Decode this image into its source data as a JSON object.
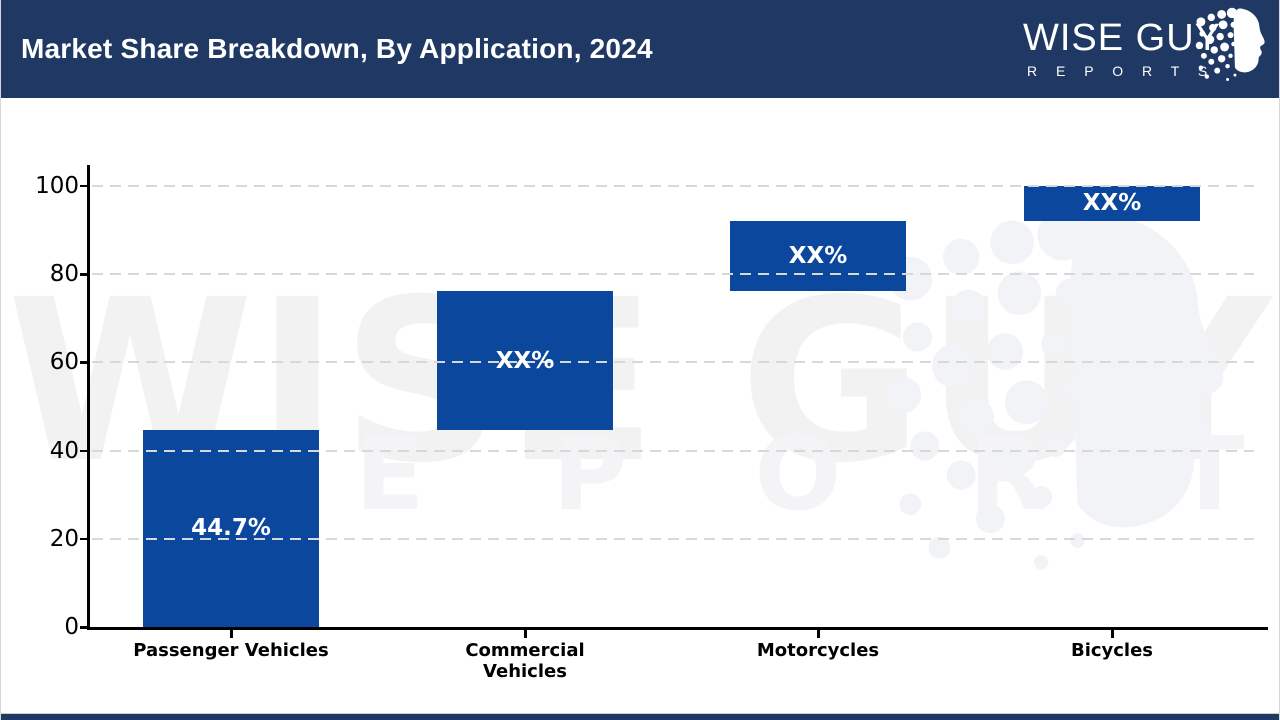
{
  "header": {
    "title": "Market Share Breakdown, By Application, 2024",
    "bg_color": "#1f3864",
    "logo": {
      "line1": "WISE GUY",
      "line2": "R E P O R T S"
    }
  },
  "watermark": {
    "line1": "WISE GUY",
    "line2": "R E P O R T S"
  },
  "footer": {
    "bar_color": "#1f3864"
  },
  "chart_data": {
    "type": "bar",
    "subtype": "waterfall-stacked-percentage",
    "title": "Market Share Breakdown, By Application, 2024",
    "categories": [
      "Passenger Vehicles",
      "Commercial Vehicles",
      "Motorcycles",
      "Bicycles"
    ],
    "bars": [
      {
        "category": "Passenger Vehicles",
        "category_label": "Passenger Vehicles",
        "start": 0,
        "end": 44.7,
        "label": "44.7%"
      },
      {
        "category": "Commercial Vehicles",
        "category_label": "Commercial\nVehicles",
        "start": 44.7,
        "end": 76.1,
        "label": "XX%"
      },
      {
        "category": "Motorcycles",
        "category_label": "Motorcycles",
        "start": 76.1,
        "end": 92.0,
        "label": "XX%"
      },
      {
        "category": "Bicycles",
        "category_label": "Bicycles",
        "start": 92.0,
        "end": 100.0,
        "label": "XX%"
      }
    ],
    "y_ticks": [
      0,
      20,
      40,
      60,
      80,
      100
    ],
    "ylim": [
      0,
      104.8
    ],
    "xlabel": "",
    "ylabel": "",
    "legend": "none",
    "grid": "horizontal-dashed-over-bars",
    "bar_color": "#0b479c",
    "grid_color": "#d8d8d8",
    "axis_color": "#000000",
    "value_label_color": "#ffffff"
  }
}
